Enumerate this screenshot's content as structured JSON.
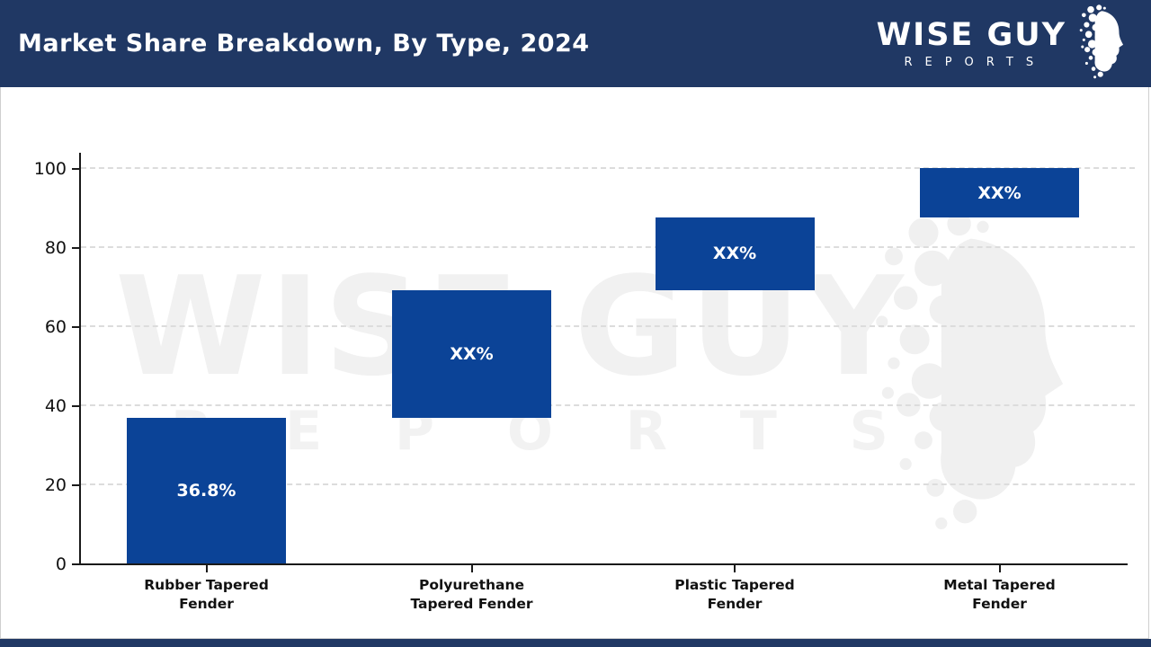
{
  "header": {
    "title": "Market Share Breakdown, By Type, 2024",
    "logo": {
      "line1": "WISE GUY",
      "line2": "REPORTS"
    }
  },
  "watermark": {
    "line1": "WISE GUY",
    "line2": "R E P O R T S"
  },
  "chart_data": {
    "type": "bar",
    "subtype": "floating-segment-waterfall",
    "title": "Market Share Breakdown, By Type, 2024",
    "categories": [
      "Rubber Tapered Fender",
      "Polyurethane Tapered Fender",
      "Plastic Tapered Fender",
      "Metal Tapered Fender"
    ],
    "category_display": [
      "Rubber Tapered\nFender",
      "Polyurethane\nTapered Fender",
      "Plastic Tapered\nFender",
      "Metal Tapered\nFender"
    ],
    "segments": [
      {
        "category": "Rubber Tapered Fender",
        "start": 0,
        "end": 36.8,
        "label": "36.8%"
      },
      {
        "category": "Polyurethane Tapered Fender",
        "start": 36.8,
        "end": 69.2,
        "label": "XX%"
      },
      {
        "category": "Plastic Tapered Fender",
        "start": 69.2,
        "end": 87.5,
        "label": "XX%"
      },
      {
        "category": "Metal Tapered Fender",
        "start": 87.5,
        "end": 100,
        "label": "XX%"
      }
    ],
    "y_ticks": [
      0,
      20,
      40,
      60,
      80,
      100
    ],
    "ylim": [
      0,
      104
    ],
    "xlabel": "",
    "ylabel": "",
    "grid": "horizontal-dashed",
    "legend": "none",
    "colors": {
      "bar": "#0b4397",
      "bar_label": "#ffffff",
      "axis": "#1a1a1a",
      "grid": "#dcdcdc",
      "header_bg": "#203864",
      "watermark": "#f0f0f0",
      "tick_label": "#111111"
    }
  }
}
